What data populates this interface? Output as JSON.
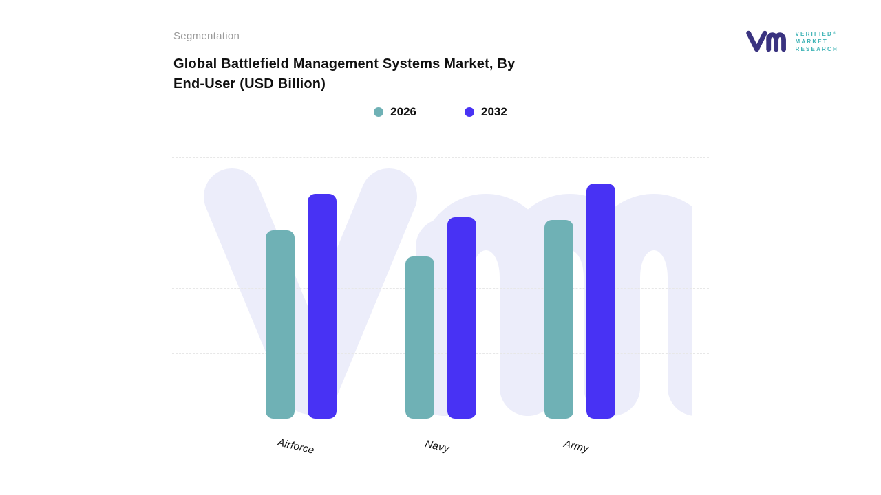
{
  "header": {
    "eyebrow": "Segmentation",
    "title_line1": "Global Battlefield Management Systems Market, By",
    "title_line2": "End-User (USD Billion)"
  },
  "logo": {
    "line1": "VERIFIED",
    "line2": "MARKET",
    "line3": "RESEARCH",
    "registered": "®",
    "monogram_color": "#3a3380",
    "text_color": "#3fb3b6"
  },
  "legend": {
    "items": [
      {
        "label": "2026",
        "color": "#6fb1b5"
      },
      {
        "label": "2032",
        "color": "#4832f4"
      }
    ],
    "position": "top-center"
  },
  "chart_data": {
    "type": "bar",
    "title": "Global Battlefield Management Systems Market, By End-User (USD Billion)",
    "categories": [
      "Airforce",
      "Navy",
      "Army"
    ],
    "series": [
      {
        "name": "2026",
        "color": "#6fb1b5",
        "values": [
          72,
          62,
          76
        ]
      },
      {
        "name": "2032",
        "color": "#4832f4",
        "values": [
          86,
          77,
          90
        ]
      }
    ],
    "xlabel": "",
    "ylabel": "",
    "ylim": [
      0,
      100
    ],
    "grid": "horizontal-dashed",
    "legend_position": "top-center",
    "value_note": "no numeric axis labels shown; values estimated relative to plot height (max = 100)"
  },
  "watermark": {
    "name": "vmr-watermark",
    "color": "#ecedfa"
  }
}
